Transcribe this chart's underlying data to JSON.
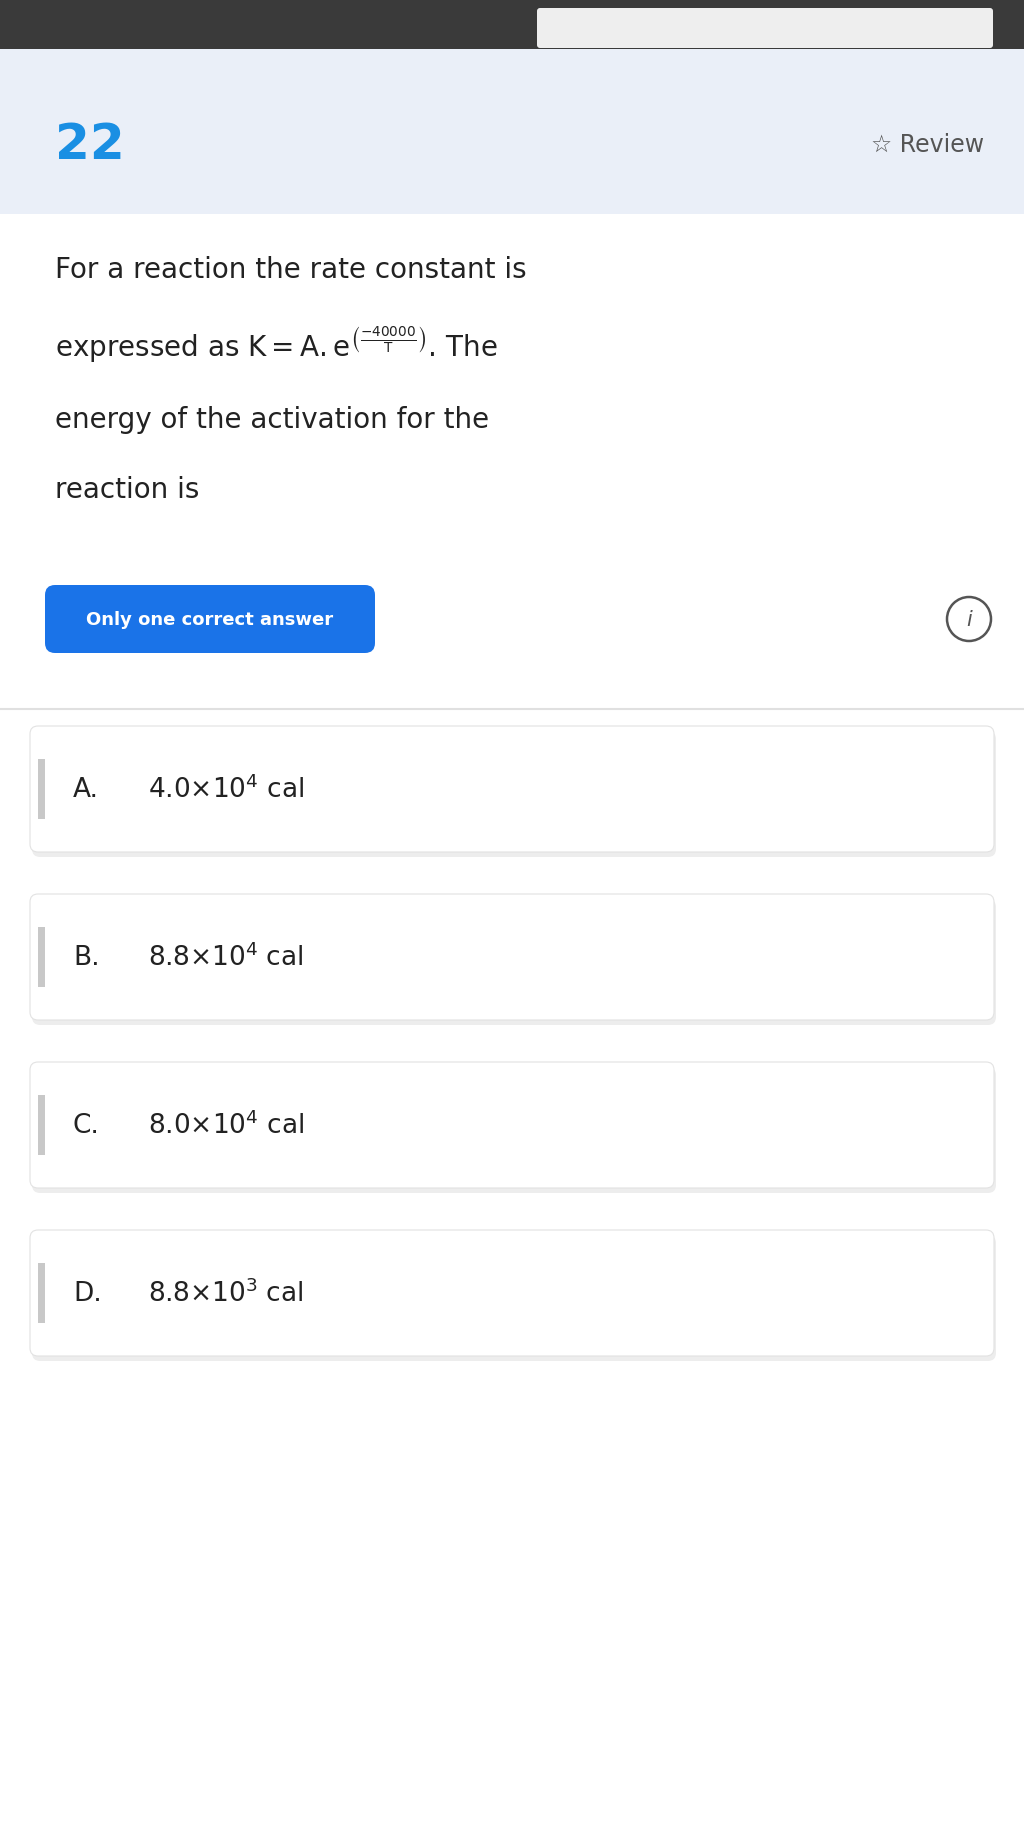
{
  "question_number": "22",
  "review_text": "☆ Review",
  "question_number_color": "#1a8fe3",
  "review_color": "#555555",
  "line1": "For a reaction the rate constant is",
  "line3": "energy of the activation for the",
  "line4": "reaction is",
  "badge_text": "Only one correct answer",
  "badge_bg_color": "#1a73e8",
  "badge_text_color": "#ffffff",
  "text_color": "#222222",
  "bg_color_top": "#eaeff8",
  "bg_color_main": "#f5f7fa",
  "bg_white": "#ffffff",
  "options": [
    {
      "label": "A.",
      "base": "4.0 × 10",
      "sup": "4",
      "suffix": " cal"
    },
    {
      "label": "B.",
      "base": "8.8 × 10",
      "sup": "4",
      "suffix": " cal"
    },
    {
      "label": "C.",
      "base": "8.0 × 10",
      "sup": "4",
      "suffix": " cal"
    },
    {
      "label": "D.",
      "base": "8.8 × 10",
      "sup": "3",
      "suffix": " cal"
    }
  ],
  "option_bg": "#ffffff",
  "option_border": "#e2e2e2",
  "option_left_bar": "#c8c8c8",
  "info_icon_color": "#555555",
  "header_bar_color": "#3a3a3a",
  "header_search_color": "#eeeeee",
  "separator_color": "#e0e0e0"
}
